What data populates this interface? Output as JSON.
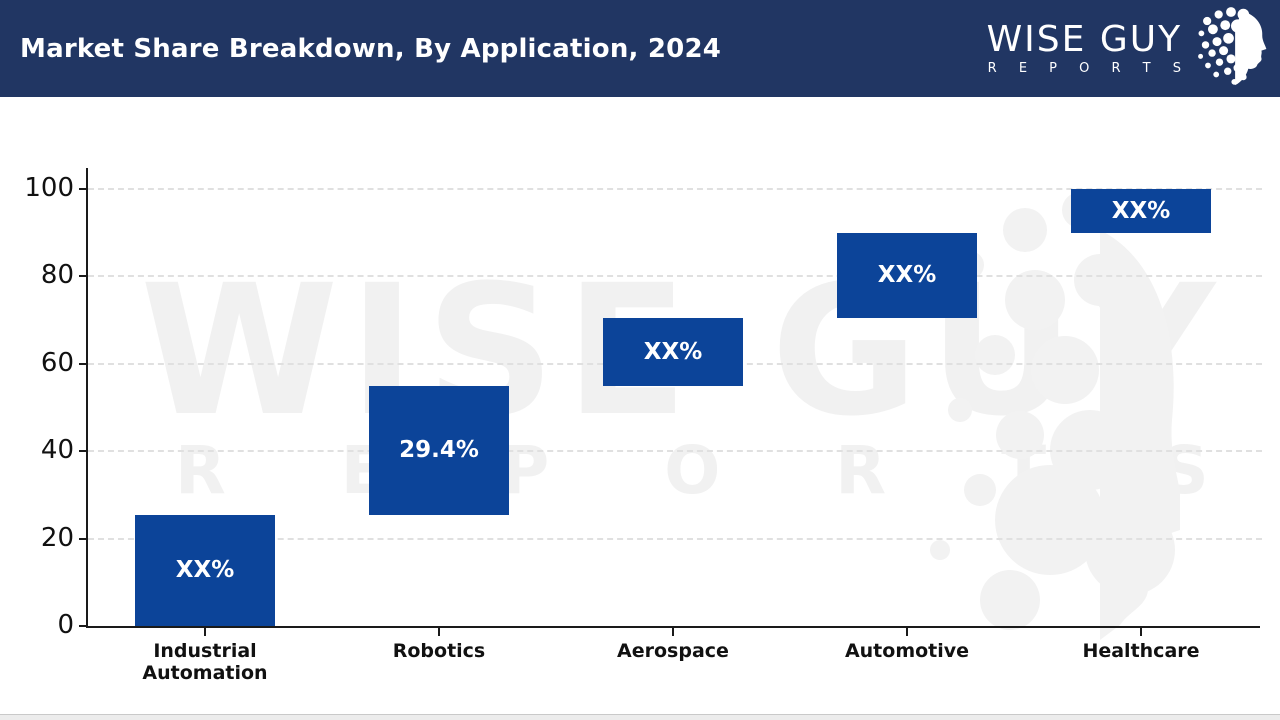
{
  "header": {
    "title": "Market Share Breakdown, By Application, 2024",
    "logo": {
      "line1": "WISE GUY",
      "line2": "R E P O R T S"
    }
  },
  "watermark": {
    "line1": "WISE GUY",
    "line2": "R E P O R T S"
  },
  "colors": {
    "header_bg": "#213663",
    "bar_blue": "#0c4499",
    "bar_label": "#ffffff",
    "gridline": "#e0e0e0",
    "axis": "#1a1a1a",
    "watermark": "#f1f1f1",
    "footer_strip": "#ececec"
  },
  "chart_data": {
    "type": "bar",
    "subtype": "waterfall",
    "title": "Market Share Breakdown, By Application, 2024",
    "categories": [
      "Industrial\nAutomation",
      "Robotics",
      "Aerospace",
      "Automotive",
      "Healthcare"
    ],
    "segments": [
      {
        "category": "Industrial Automation",
        "start": 0,
        "end": 25.5,
        "label": "XX%"
      },
      {
        "category": "Robotics",
        "start": 25.5,
        "end": 54.9,
        "label": "29.4%",
        "value": 29.4
      },
      {
        "category": "Aerospace",
        "start": 54.9,
        "end": 70.5,
        "label": "XX%"
      },
      {
        "category": "Automotive",
        "start": 70.5,
        "end": 90.0,
        "label": "XX%"
      },
      {
        "category": "Healthcare",
        "start": 90.0,
        "end": 100.0,
        "label": "XX%"
      }
    ],
    "yticks": [
      0,
      20,
      40,
      60,
      80,
      100
    ],
    "ylim": [
      0,
      105
    ],
    "grid": "dashed-horizontal",
    "legend": "none",
    "bar_color": "#0c4499",
    "bar_label_color": "#ffffff"
  }
}
